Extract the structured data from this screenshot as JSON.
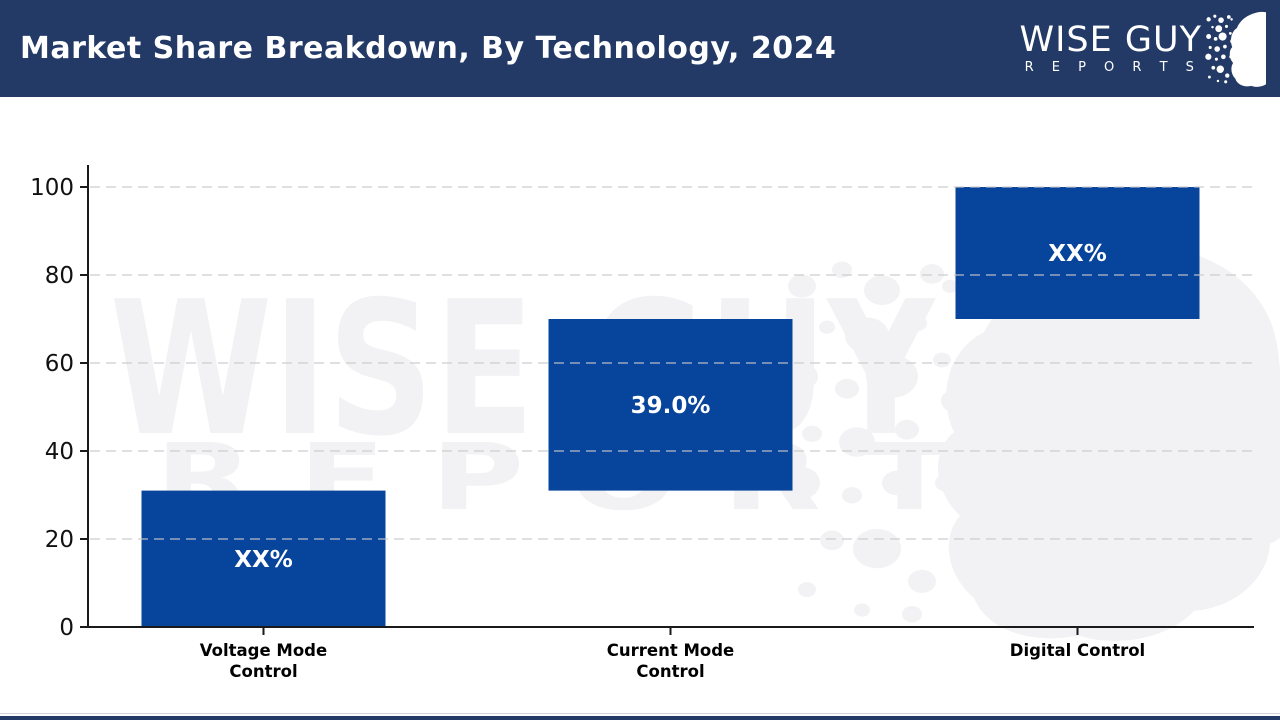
{
  "header": {
    "title": "Market Share Breakdown, By Technology, 2024",
    "logo": {
      "name": "WISE GUY",
      "sub": "R E P O R T S"
    }
  },
  "watermark": {
    "name": "WISE GUY",
    "sub": "R E P O R T S"
  },
  "colors": {
    "header_bg": "#233a66",
    "footer_bg": "#233a66",
    "bar": "#07449c",
    "bar_label": "#ffffff",
    "axis": "#1a1a1a",
    "tick_label": "#111111",
    "grid": "#c9c9c9",
    "watermark": "#f2f2f4"
  },
  "chart_data": {
    "type": "bar",
    "subtype": "waterfall",
    "title": "Market Share Breakdown, By Technology, 2024",
    "categories": [
      [
        "Voltage Mode",
        "Control"
      ],
      [
        "Current Mode",
        "Control"
      ],
      [
        "Digital Control"
      ]
    ],
    "series": [
      {
        "name": "Market Share %",
        "bases": [
          0,
          31,
          70
        ],
        "values": [
          31,
          39,
          30
        ]
      }
    ],
    "bar_labels": [
      "XX%",
      "39.0%",
      "XX%"
    ],
    "ylim": [
      0,
      100
    ],
    "yticks": [
      0,
      20,
      40,
      60,
      80,
      100
    ],
    "xlabel": "",
    "ylabel": "",
    "grid": "horizontal-dashed",
    "legend": "none"
  }
}
